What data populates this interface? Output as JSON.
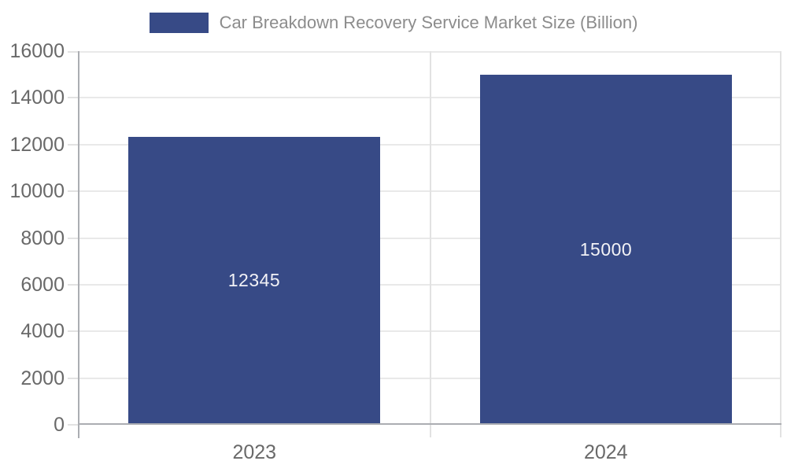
{
  "chart_data": {
    "type": "bar",
    "title": "Car Breakdown Recovery Service Market Size (Billion)",
    "categories": [
      "2023",
      "2024"
    ],
    "series": [
      {
        "name": "Car Breakdown Recovery Service Market Size (Billion)",
        "values": [
          12345,
          15000
        ]
      }
    ],
    "bar_value_labels": [
      "12345",
      "15000"
    ],
    "xlabel": "",
    "ylabel": "",
    "ylim": [
      0,
      16000
    ],
    "ytick_step": 2000,
    "yticks": [
      0,
      2000,
      4000,
      6000,
      8000,
      10000,
      12000,
      14000,
      16000
    ],
    "grid": true,
    "legend_position": "top-center",
    "colors": {
      "bar": "#374A86",
      "bar_value_label": "#F2F2F6",
      "legend_text": "#8C8C8C",
      "axis_label": "#696969",
      "axis_line": "#ABADB2",
      "gridline": "#E9E9E9",
      "tick": "#E2E2E2",
      "background": "#FFFFFF"
    }
  }
}
